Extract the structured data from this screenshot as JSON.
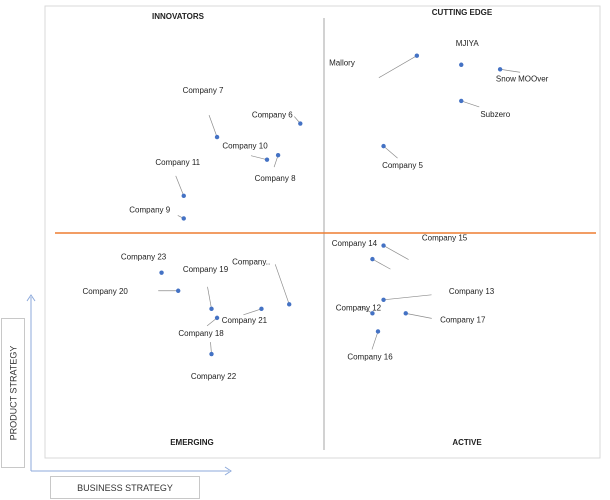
{
  "chart_data": {
    "type": "scatter",
    "title": "",
    "xlabel": "BUSINESS STRATEGY",
    "ylabel": "PRODUCT STRATEGY",
    "quadrants": {
      "top_left": "INNOVATORS",
      "top_right": "CUTTING EDGE",
      "bottom_left": "EMERGING",
      "bottom_right": "ACTIVE"
    },
    "colors": {
      "point": "#4472c4",
      "divider_h": "#ed7d31",
      "divider_v": "#a6a6a6",
      "leader": "#8c8c8c"
    },
    "points": [
      {
        "label": "MJIYA",
        "x": 0.75,
        "y": 0.87
      },
      {
        "label": "Mallory",
        "x": 0.67,
        "y": 0.89
      },
      {
        "label": "Snow MOOver",
        "x": 0.82,
        "y": 0.86
      },
      {
        "label": "Subzero",
        "x": 0.75,
        "y": 0.79
      },
      {
        "label": "Company 5",
        "x": 0.61,
        "y": 0.69
      },
      {
        "label": "Company 6",
        "x": 0.46,
        "y": 0.74
      },
      {
        "label": "Company 7",
        "x": 0.31,
        "y": 0.71
      },
      {
        "label": "Company 10",
        "x": 0.4,
        "y": 0.66
      },
      {
        "label": "Company 8",
        "x": 0.42,
        "y": 0.67
      },
      {
        "label": "Company 11",
        "x": 0.25,
        "y": 0.58
      },
      {
        "label": "Company 9",
        "x": 0.25,
        "y": 0.53
      },
      {
        "label": "Company 14",
        "x": 0.59,
        "y": 0.44
      },
      {
        "label": "Company 15",
        "x": 0.61,
        "y": 0.47
      },
      {
        "label": "Company 13",
        "x": 0.61,
        "y": 0.35
      },
      {
        "label": "Company 12",
        "x": 0.59,
        "y": 0.32
      },
      {
        "label": "Company 17",
        "x": 0.65,
        "y": 0.32
      },
      {
        "label": "Company 16",
        "x": 0.6,
        "y": 0.28
      },
      {
        "label": "Company 23",
        "x": 0.21,
        "y": 0.41
      },
      {
        "label": "Company 20",
        "x": 0.24,
        "y": 0.37
      },
      {
        "label": "Company 19",
        "x": 0.3,
        "y": 0.33
      },
      {
        "label": "Company 18",
        "x": 0.31,
        "y": 0.31
      },
      {
        "label": "Company 21",
        "x": 0.39,
        "y": 0.33
      },
      {
        "label": "Company..",
        "x": 0.44,
        "y": 0.34
      },
      {
        "label": "Company 22",
        "x": 0.3,
        "y": 0.23
      }
    ]
  }
}
